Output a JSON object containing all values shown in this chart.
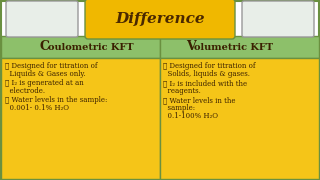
{
  "title": "Difference",
  "title_bg": "#F0B800",
  "title_color": "#4A2800",
  "title_fontsize": 11,
  "header_bg": "#8DC06A",
  "content_bg": "#F5C518",
  "left_header": "Coulometric KFT",
  "right_header": "Volumetric KFT",
  "left_header_C": "C",
  "right_header_V": "V",
  "left_bullet1_line1": "➤ Designed for titration of",
  "left_bullet1_line2": "  Liquids & Gases only.",
  "left_bullet2_line1": "➤ I₂ is generated at an",
  "left_bullet2_line2": "  electrode.",
  "left_bullet3_line1": "➤ Water levels in the sample:",
  "left_bullet3_line2": "  0.001- 0.1% H₂O",
  "right_bullet1_line1": "➤ Designed for titration of",
  "right_bullet1_line2": "  Solids, liquids & gases.",
  "right_bullet2_line1": "➤ I₂ is included with the",
  "right_bullet2_line2": "  reagents.",
  "right_bullet3_line1": "➤ Water levels in the",
  "right_bullet3_line2": "  sample:",
  "right_bullet3_line3": "  0.1-100% H₂O",
  "text_color": "#3A2000",
  "header_text_color": "#3A2000",
  "bg_color": "#FFFFFF",
  "border_color": "#6A9040",
  "divider_color": "#6A9040",
  "img_border_color": "#999999",
  "img_bg_color": "#E8EEE8"
}
